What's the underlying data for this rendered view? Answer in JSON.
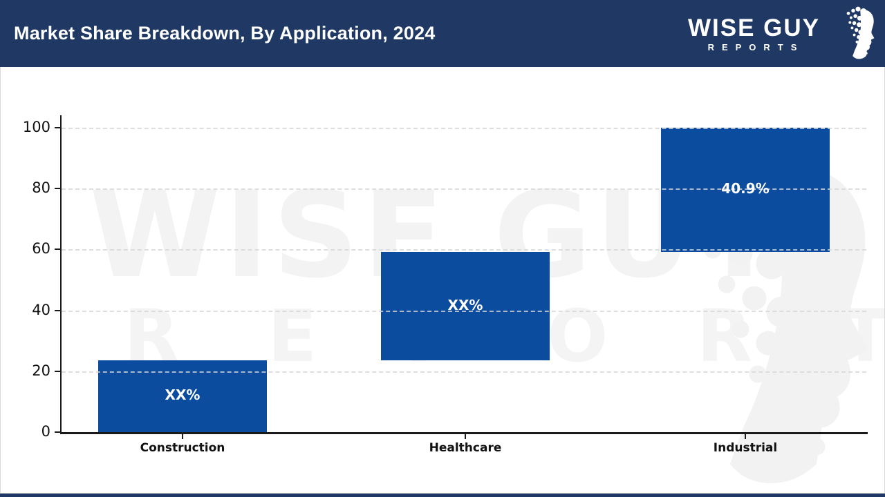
{
  "header": {
    "title": "Market Share Breakdown, By Application, 2024",
    "logo": {
      "line1": "WISE GUY",
      "line2": "REPORTS"
    }
  },
  "watermark": {
    "line1": "WISE GUY",
    "line2": "R E P O R T S"
  },
  "colors": {
    "header_bg": "#1F3864",
    "footer_bg": "#1F3864",
    "bar": "#0B4C9F",
    "gridline": "#D6D6D6",
    "axis": "#1A1A1A",
    "bar_label_text": "#FFFFFF",
    "watermark": "#F3F3F3"
  },
  "chart_data": {
    "type": "bar",
    "subtype": "cumulative-waterfall",
    "title": "Market Share Breakdown, By Application, 2024",
    "categories": [
      "Construction",
      "Healthcare",
      "Industrial"
    ],
    "values": [
      23.5,
      35.6,
      40.9
    ],
    "segment_start": [
      0,
      23.5,
      59.1
    ],
    "segment_end": [
      23.5,
      59.1,
      100
    ],
    "bar_labels": [
      "XX%",
      "XX%",
      "40.9%"
    ],
    "unit": "percent",
    "xlabel": "",
    "ylabel": "",
    "ylim": [
      0,
      100
    ],
    "yticks": [
      0,
      20,
      40,
      60,
      80,
      100
    ],
    "grid": "horizontal-dashed",
    "legend": "none"
  }
}
